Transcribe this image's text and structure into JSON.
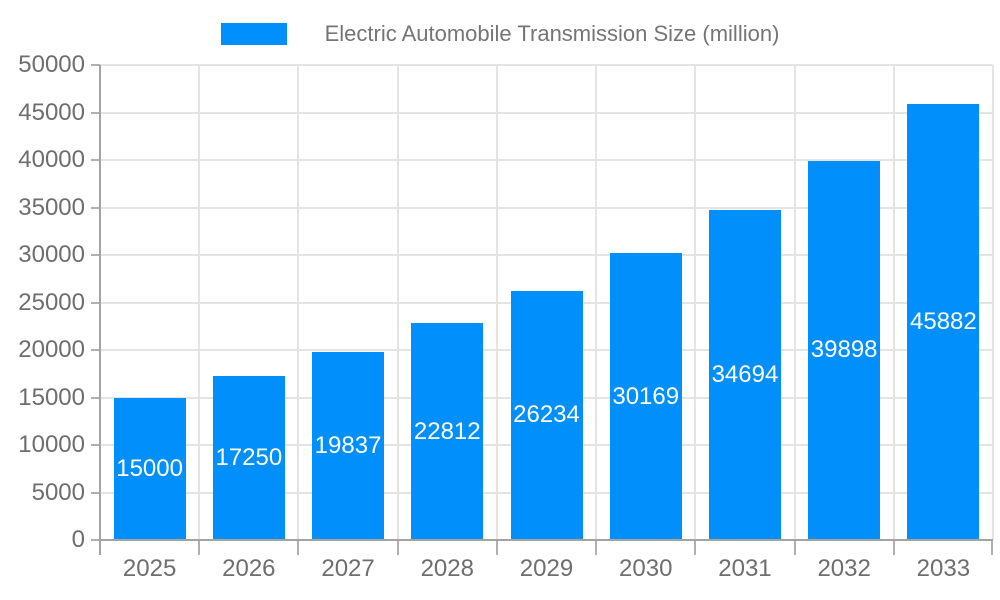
{
  "legend": {
    "swatch_color": "#0190fb"
  },
  "colors": {
    "bar": "#0190fb",
    "bar_label": "#ffffff",
    "grid": "#e4e4e4",
    "axis": "#a3a3a3",
    "tick": "#b0b0b0",
    "axis_label": "#6e6e6e",
    "legend_text": "#757575",
    "background": "#ffffff"
  },
  "chart_data": {
    "type": "bar",
    "title": "Electric Automobile Transmission Size (million)",
    "categories": [
      "2025",
      "2026",
      "2027",
      "2028",
      "2029",
      "2030",
      "2031",
      "2032",
      "2033"
    ],
    "values": [
      15000,
      17250,
      19837,
      22812,
      26234,
      30169,
      34694,
      39898,
      45882
    ],
    "xlabel": "",
    "ylabel": "",
    "ylim": [
      0,
      50000
    ],
    "yticks": [
      0,
      5000,
      10000,
      15000,
      20000,
      25000,
      30000,
      35000,
      40000,
      45000,
      50000
    ],
    "grid": true,
    "legend_position": "top",
    "bar_value_labels": true
  }
}
